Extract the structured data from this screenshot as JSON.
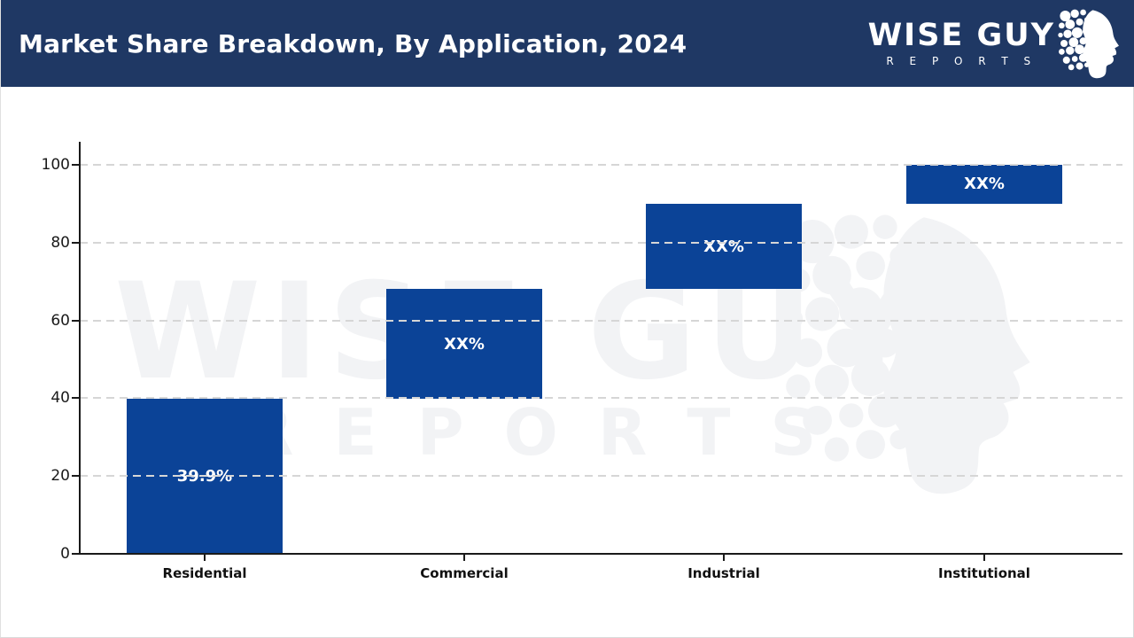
{
  "header": {
    "title": "Market Share Breakdown, By Application, 2024",
    "logo": {
      "name": "WISE GUY",
      "subtitle": "R E P O R T S"
    }
  },
  "watermark": {
    "line1": "WISE GUY",
    "line2": "R E P O R T S"
  },
  "chart_data": {
    "type": "bar",
    "subtype": "waterfall",
    "title": "Market Share Breakdown, By Application, 2024",
    "categories": [
      "Residential",
      "Commercial",
      "Industrial",
      "Institutional"
    ],
    "segments": [
      {
        "category": "Residential",
        "start": 0,
        "end": 39.9,
        "label": "39.9%"
      },
      {
        "category": "Commercial",
        "start": 39.9,
        "end": 68,
        "label": "XX%"
      },
      {
        "category": "Industrial",
        "start": 68,
        "end": 90,
        "label": "XX%"
      },
      {
        "category": "Institutional",
        "start": 90,
        "end": 100,
        "label": "XX%"
      }
    ],
    "ylim": [
      0,
      100
    ],
    "yticks": [
      0,
      20,
      40,
      60,
      80,
      100
    ],
    "ytick_labels": [
      "0",
      "20",
      "40",
      "60",
      "80",
      "100"
    ],
    "grid": "horizontal-dashed-over-bars",
    "legend": "none",
    "xlabel": "",
    "ylabel": "",
    "colors": {
      "bar": "#0b4397",
      "bar_label": "#ffffff",
      "header_bg": "#1f3864",
      "gridline": "#d6d6d6",
      "axis": "#1a1a1a",
      "watermark": "#f2f3f5"
    }
  }
}
